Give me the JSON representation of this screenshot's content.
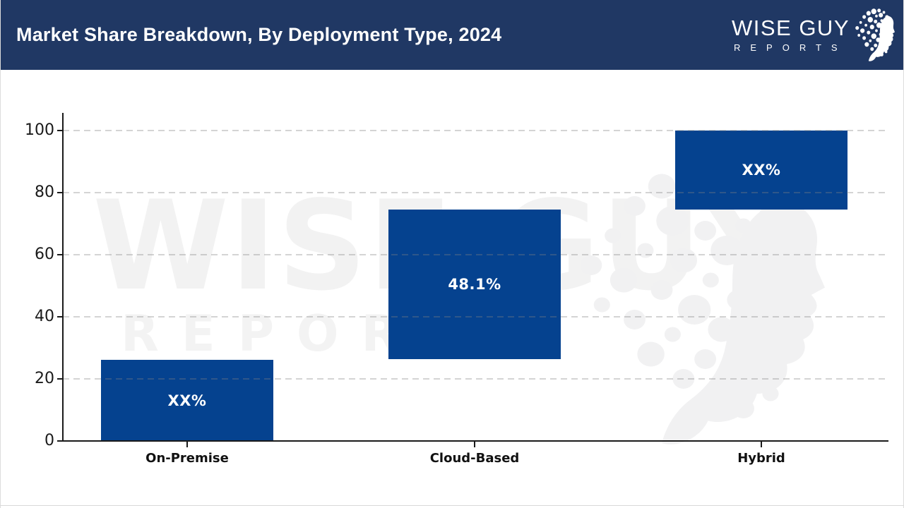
{
  "header": {
    "title": "Market Share Breakdown, By Deployment Type, 2024",
    "brand": {
      "line1": "WISE GUY",
      "line2": "REPORTS"
    }
  },
  "watermark": {
    "line1": "WISE GUY",
    "line2": "REPORTS"
  },
  "chart_data": {
    "type": "bar",
    "subtype": "floating-segment-waterfall",
    "title": "Market Share Breakdown, By Deployment Type, 2024",
    "categories": [
      "On-Premise",
      "Cloud-Based",
      "Hybrid"
    ],
    "segments": [
      {
        "category": "On-Premise",
        "start": 0,
        "end": 26.1,
        "label": "XX%"
      },
      {
        "category": "Cloud-Based",
        "start": 26.4,
        "end": 74.5,
        "label": "48.1%"
      },
      {
        "category": "Hybrid",
        "start": 74.5,
        "end": 100,
        "label": "XX%"
      }
    ],
    "y_ticks": [
      0,
      20,
      40,
      60,
      80,
      100
    ],
    "ylim": [
      0,
      105.7
    ],
    "xlabel": "",
    "ylabel": "",
    "grid": "horizontal-dashed",
    "legend": "none",
    "colors": {
      "bar": "#05428f",
      "header_bg": "#203864",
      "grid": "#d9d9d9",
      "axis": "#1a1a1a",
      "watermark": "#f2f2f2"
    }
  }
}
